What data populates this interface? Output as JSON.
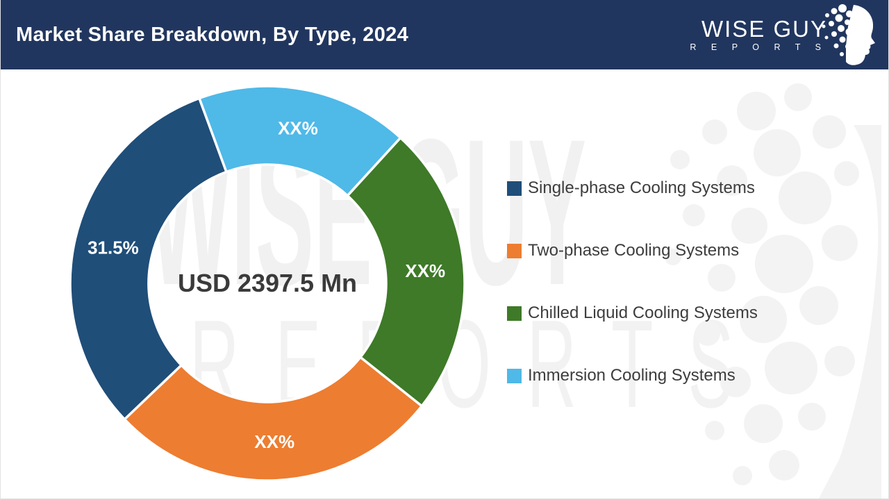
{
  "header": {
    "title": "Market Share Breakdown, By Type, 2024",
    "bg_color": "#21365f",
    "logo": {
      "line1": "WISE GUY",
      "line2": "R E P O R T S"
    }
  },
  "chart_data": {
    "type": "pie",
    "variant": "donut",
    "title": "Market Share Breakdown, By Type, 2024",
    "center_label": "USD 2397.5 Mn",
    "start_angle_deg": 226.4,
    "inner_radius_ratio": 0.6,
    "segments": [
      {
        "name": "Single-phase Cooling Systems",
        "share_pct": 31.5,
        "label": "31.5%",
        "color": "#1f4e79"
      },
      {
        "name": "Immersion Cooling Systems",
        "share_pct": 17.4,
        "label": "XX%",
        "color": "#4fb9e8"
      },
      {
        "name": "Chilled Liquid Cooling Systems",
        "share_pct": 23.9,
        "label": "XX%",
        "color": "#3e7a28"
      },
      {
        "name": "Two-phase Cooling Systems",
        "share_pct": 27.2,
        "label": "XX%",
        "color": "#ed7d31"
      }
    ],
    "label_color": "#ffffff",
    "separator_color": "#ffffff",
    "legend_position": "right"
  },
  "legend": {
    "items": [
      {
        "label": "Single-phase Cooling Systems",
        "color": "#1f4e79"
      },
      {
        "label": "Two-phase Cooling Systems",
        "color": "#ed7d31"
      },
      {
        "label": "Chilled Liquid Cooling Systems",
        "color": "#3e7a28"
      },
      {
        "label": "Immersion Cooling Systems",
        "color": "#4fb9e8"
      }
    ]
  },
  "watermark": {
    "line1": "WISE GUY",
    "line2": "R E P O R T S"
  }
}
